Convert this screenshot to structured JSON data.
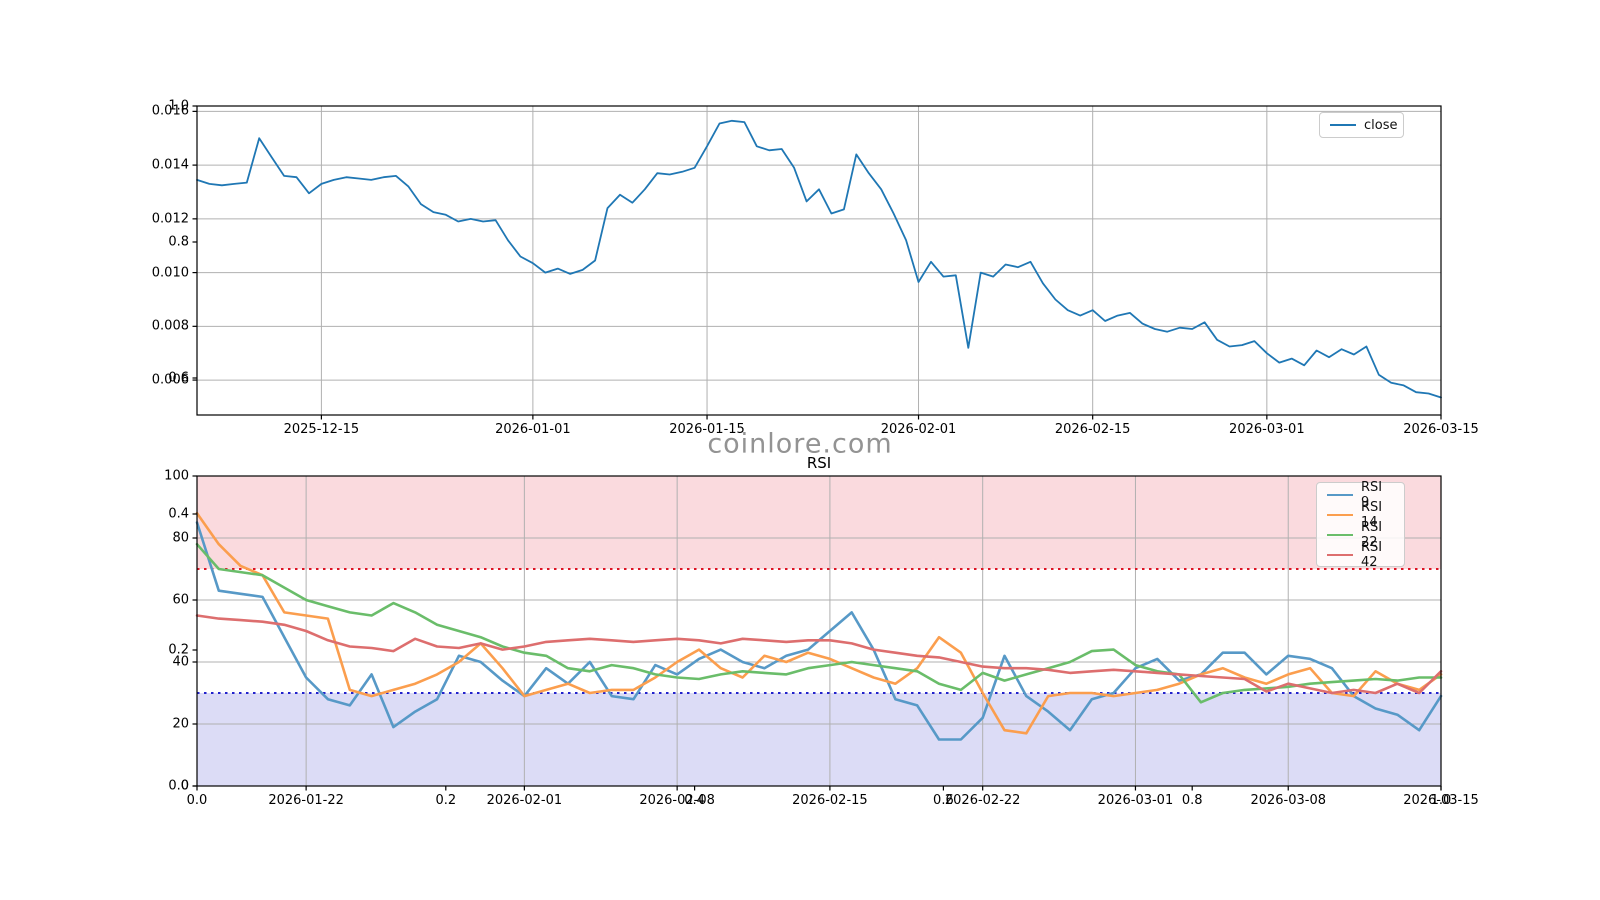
{
  "watermark": "coinlore.com",
  "colors": {
    "close_line": "#1f77b4",
    "rsi9": "#5799c7",
    "rsi14": "#fb9e4e",
    "rsi22": "#6abd6a",
    "rsi42": "#dd6e6e",
    "overbought_line": "#dc1424",
    "oversold_line": "#2222cc",
    "overbought_band": "#fadade",
    "oversold_band": "#dcdcf6",
    "grid": "#b0b0b0",
    "spine": "#000000"
  },
  "chart_data": [
    {
      "type": "line",
      "name": "price",
      "title": "",
      "legend_position": "upper right",
      "grid": true,
      "start_date": "2025-12-05",
      "end_date": "2026-03-15",
      "ylim": [
        0.0047,
        0.0162
      ],
      "y_ticks": [
        {
          "label": "0.016",
          "value": 0.016
        },
        {
          "label": "0.014",
          "value": 0.014
        },
        {
          "label": "0.012",
          "value": 0.012
        },
        {
          "label": "0.010",
          "value": 0.01
        },
        {
          "label": "0.008",
          "value": 0.008
        },
        {
          "label": "0.006",
          "value": 0.006
        }
      ],
      "x_ticks": [
        {
          "label": "2025-12-15",
          "i": 10
        },
        {
          "label": "2026-01-01",
          "i": 27
        },
        {
          "label": "2026-01-15",
          "i": 41
        },
        {
          "label": "2026-02-01",
          "i": 58
        },
        {
          "label": "2026-02-15",
          "i": 72
        },
        {
          "label": "2026-03-01",
          "i": 86
        },
        {
          "label": "2026-03-15",
          "i": 100
        }
      ],
      "series": [
        {
          "name": "close",
          "color": "#1f77b4",
          "width": 1.8,
          "values": [
            0.01345,
            0.0133,
            0.01325,
            0.0133,
            0.01335,
            0.015,
            0.0143,
            0.0136,
            0.01355,
            0.01295,
            0.0133,
            0.01345,
            0.01355,
            0.0135,
            0.01345,
            0.01355,
            0.0136,
            0.0132,
            0.01255,
            0.01225,
            0.01215,
            0.0119,
            0.012,
            0.0119,
            0.01195,
            0.0112,
            0.0106,
            0.01035,
            0.01,
            0.01015,
            0.00995,
            0.0101,
            0.01045,
            0.0124,
            0.0129,
            0.0126,
            0.0131,
            0.0137,
            0.01365,
            0.01375,
            0.0139,
            0.0147,
            0.01555,
            0.01565,
            0.0156,
            0.0147,
            0.01455,
            0.0146,
            0.0139,
            0.01265,
            0.0131,
            0.0122,
            0.01235,
            0.0144,
            0.0137,
            0.0131,
            0.0122,
            0.0112,
            0.00965,
            0.0104,
            0.00985,
            0.0099,
            0.0072,
            0.01,
            0.00985,
            0.0103,
            0.0102,
            0.0104,
            0.0096,
            0.009,
            0.0086,
            0.0084,
            0.0086,
            0.0082,
            0.0084,
            0.0085,
            0.0081,
            0.0079,
            0.0078,
            0.00795,
            0.0079,
            0.00815,
            0.0075,
            0.00725,
            0.0073,
            0.00745,
            0.007,
            0.00665,
            0.0068,
            0.00655,
            0.0071,
            0.00685,
            0.00715,
            0.00695,
            0.00725,
            0.0062,
            0.0059,
            0.0058,
            0.00555,
            0.0055,
            0.00535
          ]
        }
      ]
    },
    {
      "type": "line",
      "name": "rsi",
      "title": "RSI",
      "legend_position": "upper right",
      "grid": true,
      "start_date": "2026-01-17",
      "end_date": "2026-03-15",
      "ylim": [
        0,
        100
      ],
      "overbought_level": 70,
      "oversold_level": 30,
      "y_ticks": [
        {
          "label": "100",
          "value": 100
        },
        {
          "label": "80",
          "value": 80
        },
        {
          "label": "60",
          "value": 60
        },
        {
          "label": "40",
          "value": 40
        },
        {
          "label": "20",
          "value": 20
        },
        {
          "label": "0",
          "value": 0
        }
      ],
      "x_ticks": [
        {
          "label": "2026-01-22",
          "i": 5
        },
        {
          "label": "2026-02-01",
          "i": 15
        },
        {
          "label": "2026-02-08",
          "i": 22
        },
        {
          "label": "2026-02-15",
          "i": 29
        },
        {
          "label": "2026-02-22",
          "i": 36
        },
        {
          "label": "2026-03-01",
          "i": 43
        },
        {
          "label": "2026-03-08",
          "i": 50
        },
        {
          "label": "2026-03-15",
          "i": 57
        }
      ],
      "series": [
        {
          "name": "RSI 9",
          "color": "#5799c7",
          "width": 2.6,
          "values": [
            85,
            63,
            62,
            61,
            48,
            35,
            28,
            26,
            36,
            19,
            24,
            28,
            42,
            40,
            34,
            29,
            38,
            33,
            40,
            29,
            28,
            39,
            36,
            41,
            44,
            40,
            38,
            42,
            44,
            50,
            56,
            44,
            28,
            26,
            15,
            15,
            22,
            42,
            29,
            24,
            18,
            28,
            30,
            38,
            41,
            34,
            36,
            43,
            43,
            36,
            42,
            41,
            38,
            29,
            25,
            23,
            18,
            29
          ]
        },
        {
          "name": "RSI 14",
          "color": "#fb9e4e",
          "width": 2.6,
          "values": [
            88,
            78,
            71,
            68,
            56,
            55,
            54,
            31,
            29,
            31,
            33,
            36,
            40,
            46,
            38,
            29,
            31,
            33,
            30,
            31,
            31,
            35,
            40,
            44,
            38,
            35,
            42,
            40,
            43,
            41,
            38,
            35,
            33,
            38,
            48,
            43,
            30,
            18,
            17,
            29,
            30,
            30,
            29,
            30,
            31,
            33,
            36,
            38,
            35,
            33,
            36,
            38,
            30,
            29,
            37,
            33,
            31,
            36
          ]
        },
        {
          "name": "RSI 22",
          "color": "#6abd6a",
          "width": 2.6,
          "values": [
            78,
            70,
            69,
            68,
            64,
            60,
            58,
            56,
            55,
            59,
            56,
            52,
            50,
            48,
            45,
            43,
            42,
            38,
            37,
            39,
            38,
            36,
            35,
            34.5,
            36,
            37,
            36.5,
            36,
            38,
            39,
            40,
            39,
            38,
            37,
            33,
            31,
            36.5,
            34,
            36,
            38,
            40,
            43.5,
            44,
            39,
            37,
            36,
            27,
            30,
            31,
            31.5,
            32,
            33,
            33.5,
            34,
            34.5,
            34,
            35,
            35
          ]
        },
        {
          "name": "RSI 42",
          "color": "#dd6e6e",
          "width": 2.6,
          "values": [
            55,
            54,
            53.5,
            53,
            52,
            50,
            47,
            45,
            44.5,
            43.5,
            47.5,
            45,
            44.5,
            46,
            44,
            45,
            46.5,
            47,
            47.5,
            47,
            46.5,
            47,
            47.5,
            47,
            46,
            47.5,
            47,
            46.5,
            47,
            47,
            46,
            44,
            43,
            42,
            41.5,
            40,
            38.5,
            38,
            38,
            37.5,
            36.5,
            37,
            37.5,
            37,
            36.5,
            36,
            35.5,
            35,
            34.5,
            30.5,
            33,
            31.5,
            30,
            31,
            30,
            33,
            30,
            37
          ]
        }
      ]
    }
  ],
  "overlay_axis": {
    "x_tick_labels": [
      "0.0",
      "0.2",
      "0.4",
      "0.6",
      "0.8",
      "1.0"
    ],
    "y_tick_labels": [
      "1.0",
      "0.8",
      "0.6",
      "0.4",
      "0.2",
      "0.0"
    ]
  }
}
